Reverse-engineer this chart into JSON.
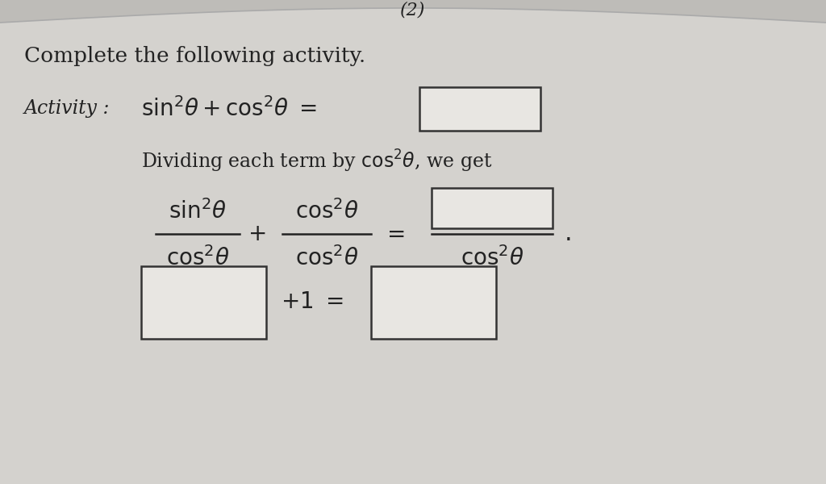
{
  "bg_color": "#c8c8cc",
  "paper_color": "#d4d2ce",
  "page_number": "(2)",
  "heading": "Complete the following activity.",
  "activity_label": "Activity :",
  "box_color": "#e8e6e2",
  "box_edge_color": "#333333",
  "text_color": "#222222",
  "curve_color": "#aaaaaa",
  "font_size_heading": 19,
  "font_size_body": 17,
  "font_size_math": 20,
  "font_size_pagenum": 16
}
